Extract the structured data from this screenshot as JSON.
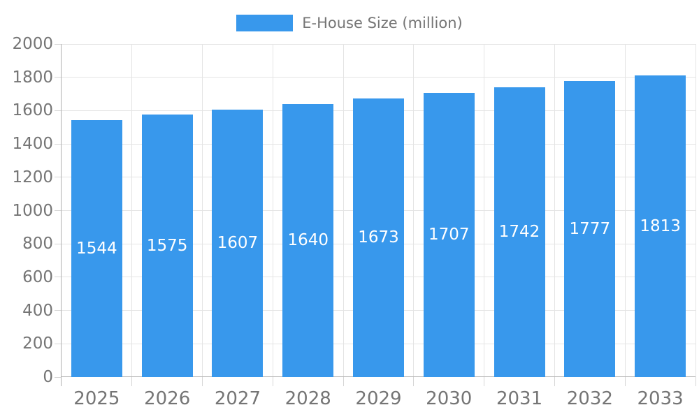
{
  "legend": {
    "label": "E-House Size (million)"
  },
  "chart_data": {
    "type": "bar",
    "title": "E-House Size (million)",
    "categories": [
      "2025",
      "2026",
      "2027",
      "2028",
      "2029",
      "2030",
      "2031",
      "2032",
      "2033"
    ],
    "series": [
      {
        "name": "E-House Size (million)",
        "values": [
          1544,
          1575,
          1607,
          1640,
          1673,
          1707,
          1742,
          1777,
          1813
        ]
      }
    ],
    "xlabel": "",
    "ylabel": "",
    "ylim": [
      0,
      2000
    ],
    "yticks": [
      0,
      200,
      400,
      600,
      800,
      1000,
      1200,
      1400,
      1600,
      1800,
      2000
    ],
    "grid": true,
    "legend_position": "top-center",
    "bar_labels_shown": true,
    "colors": {
      "bar": "#3898EC",
      "bar_label": "#FFFFFF",
      "axis_label": "#757575",
      "gridline": "#E4E4E4",
      "axis_line": "#B0B0B0",
      "tick": "#D6D6D6",
      "background": "#FFFFFF"
    }
  }
}
